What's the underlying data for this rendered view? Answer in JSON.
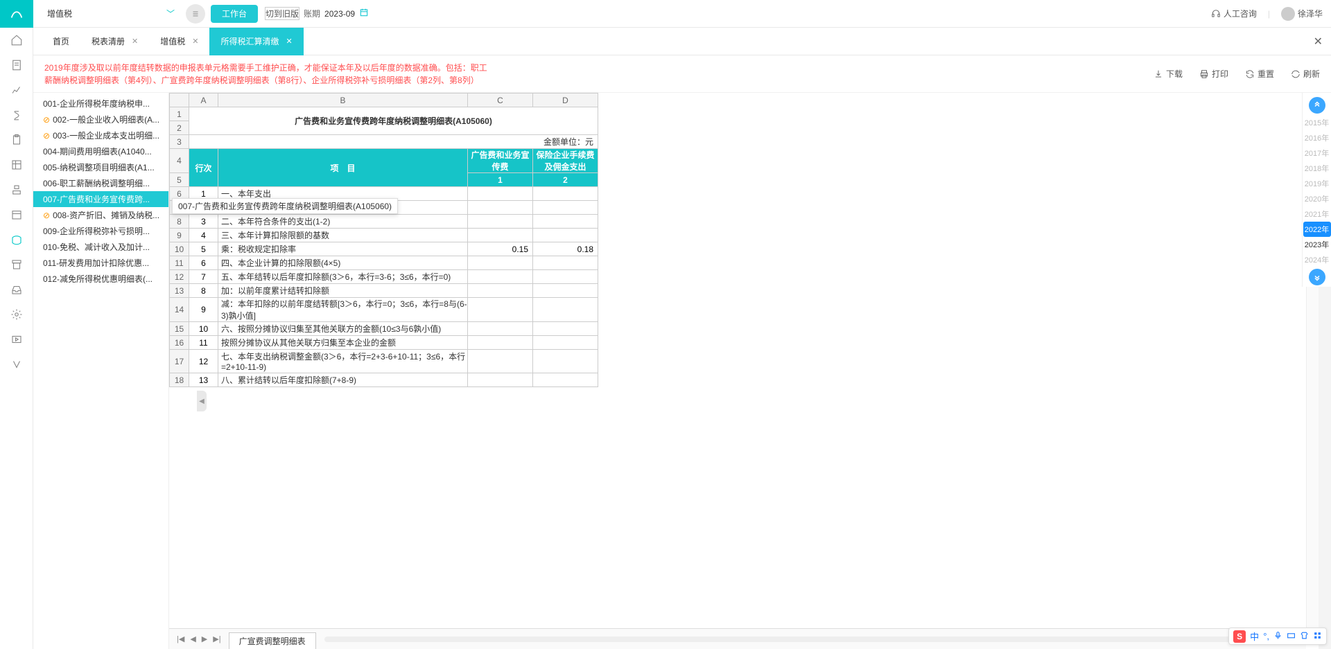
{
  "topbar": {
    "module": "增值税",
    "workbench": "工作台",
    "switch_old": "切到旧版",
    "period_label": "账期",
    "period_value": "2023-09",
    "consult": "人工咨询",
    "user_name": "徐泽华"
  },
  "tabs": [
    {
      "label": "首页",
      "closable": false,
      "active": false
    },
    {
      "label": "税表清册",
      "closable": true,
      "active": false
    },
    {
      "label": "增值税",
      "closable": true,
      "active": false
    },
    {
      "label": "所得税汇算清缴",
      "closable": true,
      "active": true
    }
  ],
  "toolbar": {
    "warning": "2019年度涉及取以前年度结转数据的申报表单元格需要手工维护正确，才能保证本年及以后年度的数据准确。包括：职工薪酬纳税调整明细表（第4列）、广宣费跨年度纳税调整明细表（第8行）、企业所得税弥补亏损明细表（第2列、第8列）",
    "download": "下载",
    "print": "打印",
    "reset": "重置",
    "refresh": "刷新"
  },
  "form_list": [
    {
      "label": "001-企业所得税年度纳税申...",
      "warn": false
    },
    {
      "label": "002-一般企业收入明细表(A...",
      "warn": true
    },
    {
      "label": "003-一般企业成本支出明细...",
      "warn": true
    },
    {
      "label": "004-期间费用明细表(A1040...",
      "warn": false
    },
    {
      "label": "005-纳税调整项目明细表(A1...",
      "warn": false
    },
    {
      "label": "006-职工薪酬纳税调整明细...",
      "warn": false
    },
    {
      "label": "007-广告费和业务宣传费跨...",
      "warn": false,
      "selected": true
    },
    {
      "label": "008-资产折旧、摊销及纳税...",
      "warn": true
    },
    {
      "label": "009-企业所得税弥补亏损明...",
      "warn": false
    },
    {
      "label": "010-免税、减计收入及加计...",
      "warn": false
    },
    {
      "label": "011-研发费用加计扣除优惠...",
      "warn": false
    },
    {
      "label": "012-减免所得税优惠明细表(...",
      "warn": false
    }
  ],
  "tooltip": "007-广告费和业务宣传费跨年度纳税调整明细表(A105060)",
  "sheet": {
    "col_letters": [
      "A",
      "B",
      "C",
      "D"
    ],
    "title": "广告费和业务宣传费跨年度纳税调整明细表(A105060)",
    "unit": "金额单位：元",
    "header_seq": "行次",
    "header_item": "项　目",
    "header_c": "广告费和业务宣传费",
    "header_d": "保险企业手续费及佣金支出",
    "sub_c": "1",
    "sub_d": "2",
    "rows": [
      {
        "n": "1",
        "seq": "1",
        "txt": "一、本年支出",
        "c": "",
        "d": ""
      },
      {
        "n": "2",
        "seq": "2",
        "txt": "",
        "c": "",
        "d": "",
        "blank": true
      },
      {
        "n": "3",
        "seq": "3",
        "txt": "二、本年符合条件的支出(1-2)",
        "c": "",
        "d": ""
      },
      {
        "n": "4",
        "seq": "4",
        "txt": "三、本年计算扣除限额的基数",
        "c": "",
        "d": ""
      },
      {
        "n": "5",
        "seq": "5",
        "txt": "乘：税收规定扣除率",
        "c": "0.15",
        "d": "0.18"
      },
      {
        "n": "6",
        "seq": "6",
        "txt": "四、本企业计算的扣除限额(4×5)",
        "c": "",
        "d": ""
      },
      {
        "n": "7",
        "seq": "7",
        "txt": "五、本年结转以后年度扣除额(3＞6，本行=3-6；3≤6，本行=0)",
        "c": "",
        "d": ""
      },
      {
        "n": "8",
        "seq": "8",
        "txt": "加：以前年度累计结转扣除额",
        "c": "",
        "d": ""
      },
      {
        "n": "9",
        "seq": "9",
        "txt": "减：本年扣除的以前年度结转额[3＞6，本行=0；3≤6，本行=8与(6-3)孰小值]",
        "c": "",
        "d": "",
        "tall": true
      },
      {
        "n": "10",
        "seq": "10",
        "txt": "六、按照分摊协议归集至其他关联方的金额(10≤3与6孰小值)",
        "c": "",
        "d": ""
      },
      {
        "n": "11",
        "seq": "11",
        "txt": "按照分摊协议从其他关联方归集至本企业的金额",
        "c": "",
        "d": ""
      },
      {
        "n": "12",
        "seq": "12",
        "txt": "七、本年支出纳税调整金额(3＞6，本行=2+3-6+10-11；3≤6，本行=2+10-11-9)",
        "c": "",
        "d": "",
        "tall": true
      },
      {
        "n": "13",
        "seq": "13",
        "txt": "八、累计结转以后年度扣除额(7+8-9)",
        "c": "",
        "d": ""
      }
    ],
    "row_numbers": [
      "1",
      "2",
      "3",
      "4",
      "5",
      "6",
      "7",
      "8",
      "9",
      "10",
      "11",
      "12",
      "13",
      "14",
      "15",
      "16",
      "17",
      "18"
    ],
    "tab_name": "广宣费调整明细表"
  },
  "years": {
    "list": [
      "2015年",
      "2016年",
      "2017年",
      "2018年",
      "2019年",
      "2020年",
      "2021年",
      "2022年",
      "2023年",
      "2024年"
    ],
    "current": "2022年",
    "near": "2023年"
  },
  "ime": {
    "s": "S",
    "lang": "中"
  }
}
